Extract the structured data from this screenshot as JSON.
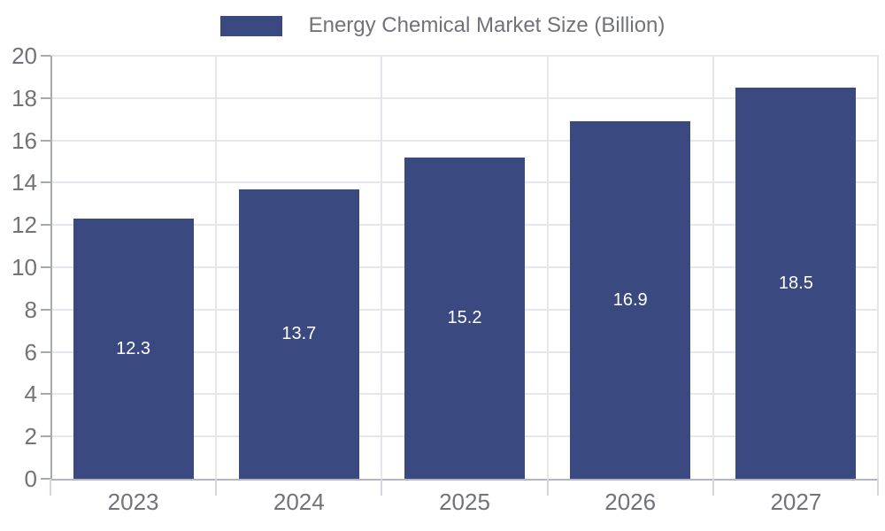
{
  "chart_data": {
    "type": "bar",
    "title": "Energy Chemical Market Size (Billion)",
    "legend_entries": [
      "Energy Chemical Market Size (Billion)"
    ],
    "legend_position": "top-center",
    "categories": [
      "2023",
      "2024",
      "2025",
      "2026",
      "2027"
    ],
    "values": [
      12.3,
      13.7,
      15.2,
      16.9,
      18.5
    ],
    "value_labels": [
      "12.3",
      "13.7",
      "15.2",
      "16.9",
      "18.5"
    ],
    "xlabel": "",
    "ylabel": "",
    "ylim": [
      0,
      20
    ],
    "ytick_step": 2,
    "yticks": [
      0,
      2,
      4,
      6,
      8,
      10,
      12,
      14,
      16,
      18,
      20
    ],
    "grid": true,
    "value_label_position": "inside-center"
  },
  "colors": {
    "bar": "#3A4A81",
    "bar_value_label": "#FFFFFF",
    "axis_text": "#717379",
    "legend_text": "#717379",
    "gridline": "#E6E7EC",
    "axis_line_y": "#A7A9B1",
    "axis_line_x": "#B3B6C0",
    "tick_mark_x": "#D3D6DD",
    "background": "#FFFFFF"
  }
}
